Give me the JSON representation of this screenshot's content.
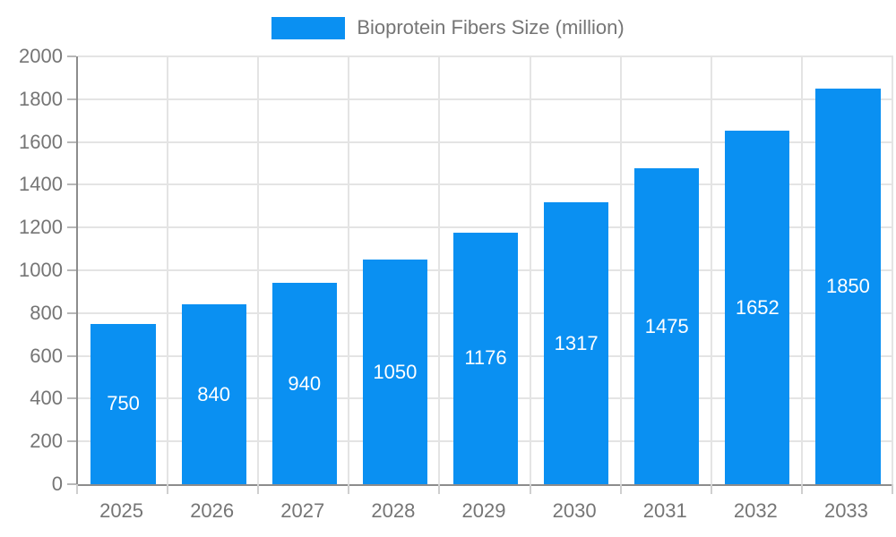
{
  "chart_data": {
    "type": "bar",
    "title": "Bioprotein Fibers Size (million)",
    "categories": [
      "2025",
      "2026",
      "2027",
      "2028",
      "2029",
      "2030",
      "2031",
      "2032",
      "2033"
    ],
    "values": [
      750,
      840,
      940,
      1050,
      1176,
      1317,
      1475,
      1652,
      1850
    ],
    "xlabel": "",
    "ylabel": "",
    "ylim": [
      0,
      2000
    ],
    "ytick_step": 200,
    "ytick_labels": [
      "0",
      "200",
      "400",
      "600",
      "800",
      "1000",
      "1200",
      "1400",
      "1600",
      "1800",
      "2000"
    ],
    "grid": true,
    "legend_position": "top",
    "bar_label_style": "inside-center-white"
  },
  "colors": {
    "bar": "#0A90F2",
    "grid": "#e4e4e4",
    "axis": "#8c8c8c",
    "tick": "#b8b8b8",
    "axis_text": "#757575",
    "bar_label": "#ffffff"
  }
}
